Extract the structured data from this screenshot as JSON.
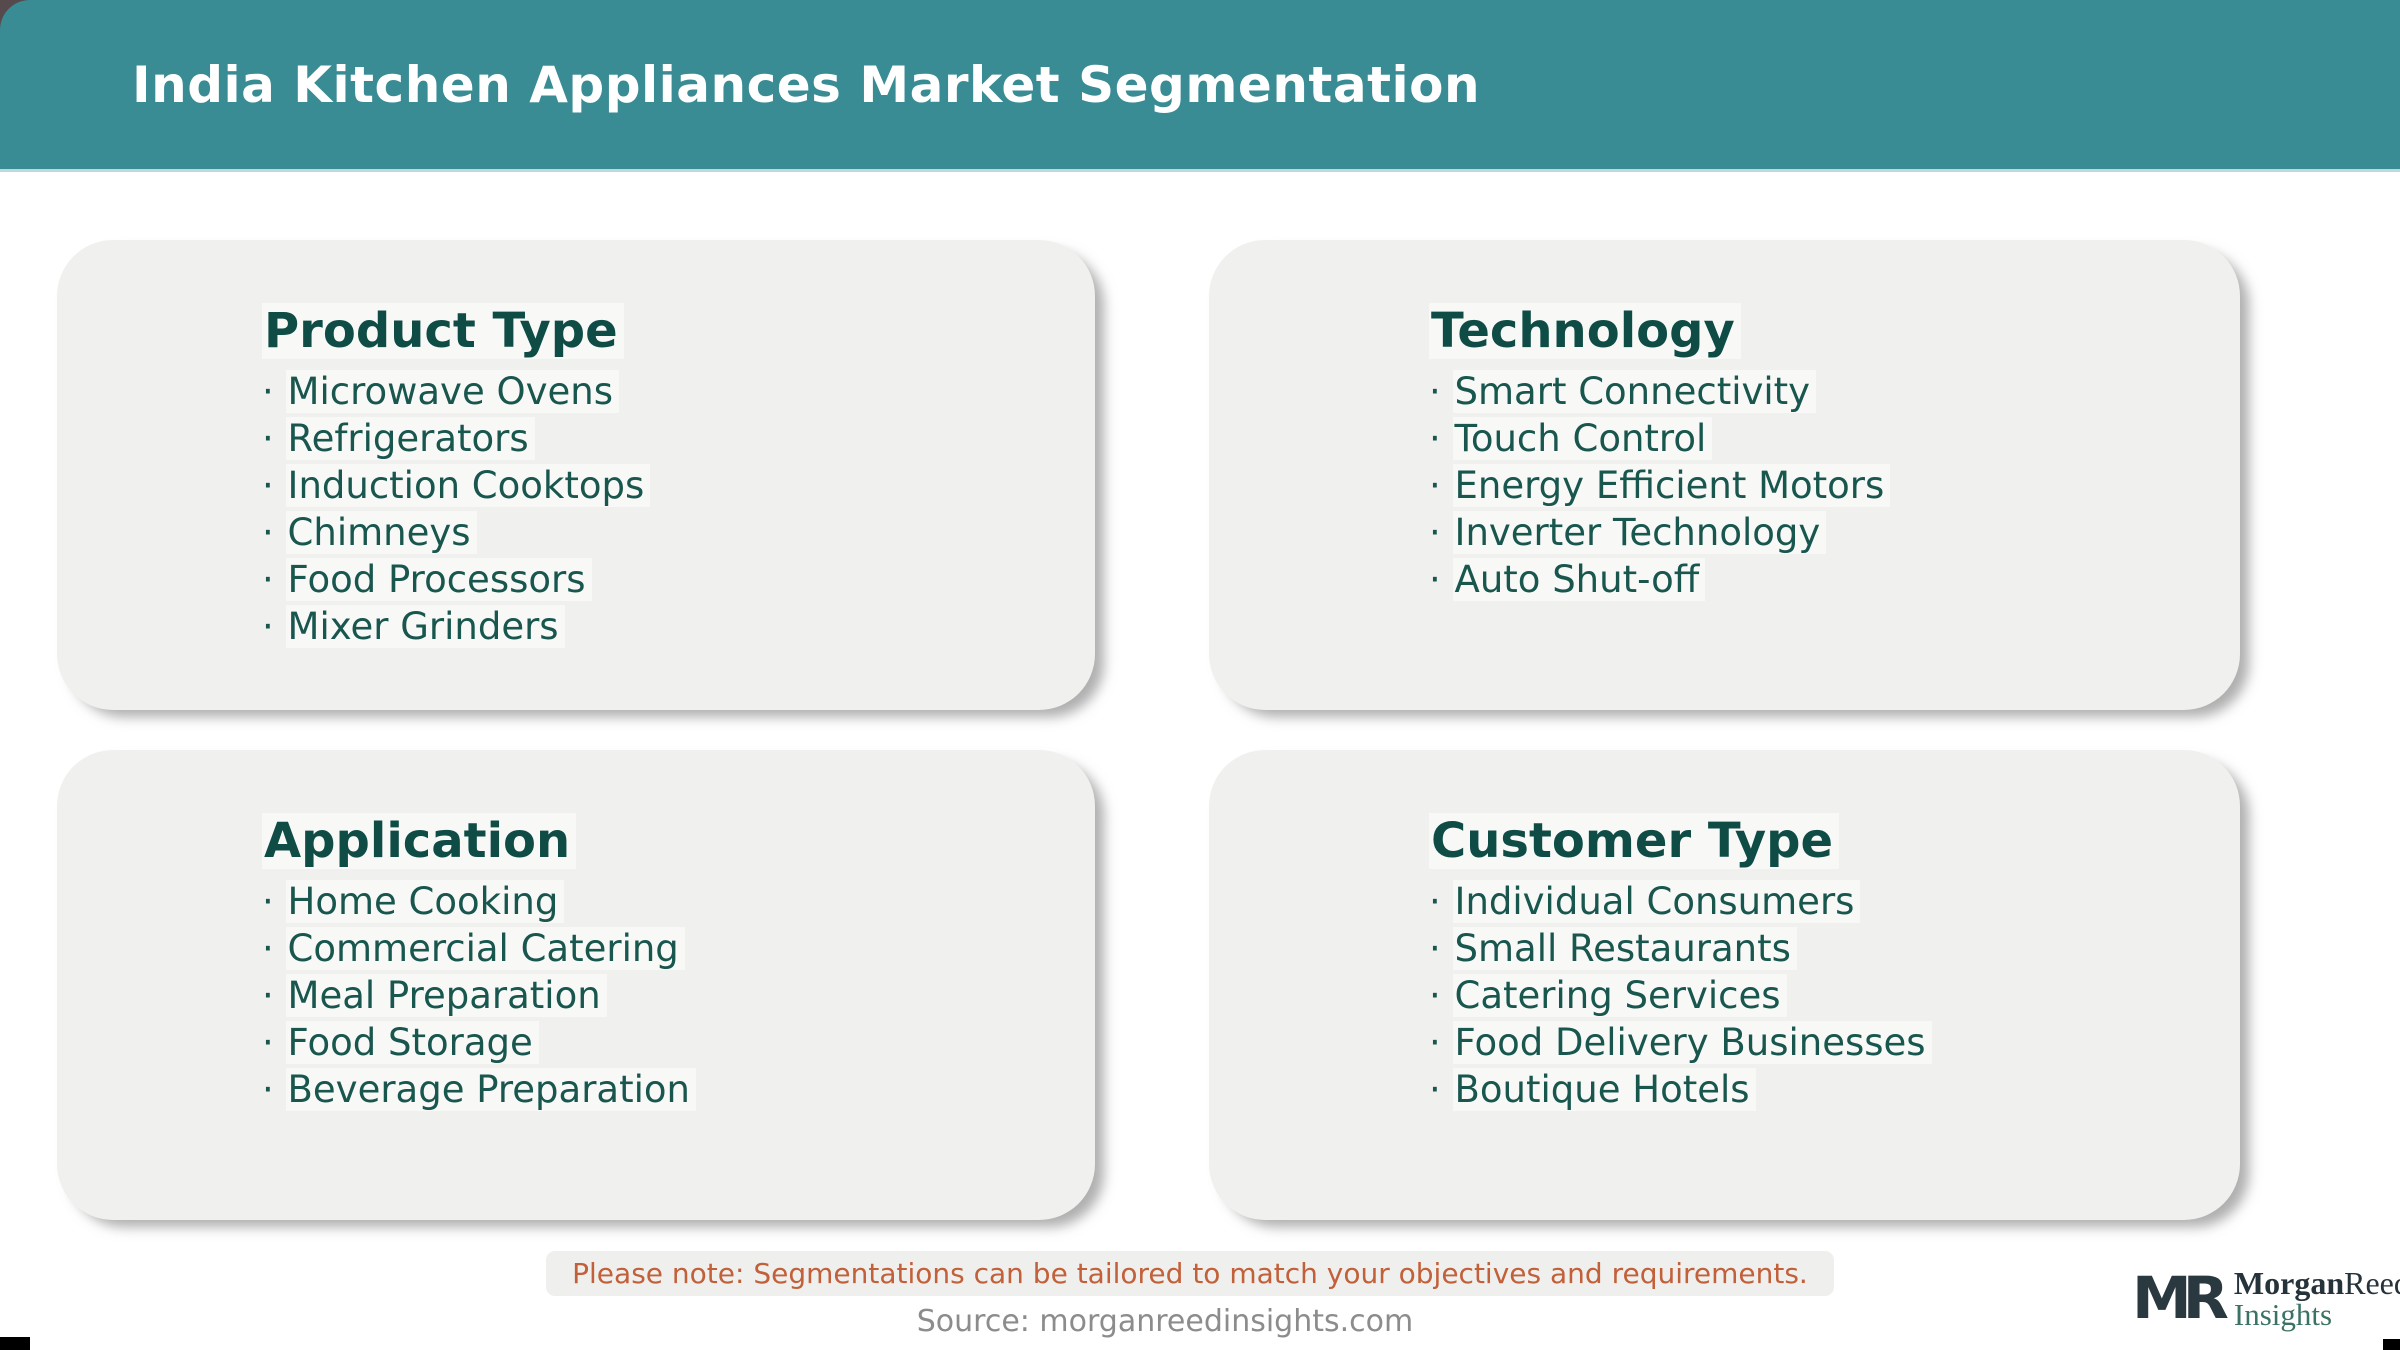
{
  "header": {
    "title": "India Kitchen Appliances Market Segmentation",
    "bg_color": "#398b94",
    "text_color": "#ffffff"
  },
  "cards": [
    {
      "title": "Product Type",
      "items": [
        "Microwave Ovens",
        "Refrigerators",
        "Induction Cooktops",
        "Chimneys",
        "Food Processors",
        "Mixer Grinders"
      ]
    },
    {
      "title": "Technology",
      "items": [
        "Smart Connectivity",
        "Touch Control",
        "Energy Efficient Motors",
        "Inverter Technology",
        "Auto Shut-off"
      ]
    },
    {
      "title": "Application",
      "items": [
        "Home Cooking",
        "Commercial Catering",
        "Meal Preparation",
        "Food Storage",
        "Beverage Preparation"
      ]
    },
    {
      "title": "Customer Type",
      "items": [
        "Individual Consumers",
        "Small Restaurants",
        "Catering Services",
        "Food Delivery Businesses",
        "Boutique Hotels"
      ]
    }
  ],
  "footer": {
    "note": "Please note: Segmentations can be tailored to match your objectives and requirements.",
    "note_color": "#c2603a",
    "source": "Source: morganreedinsights.com"
  },
  "logo": {
    "monogram": "MR",
    "name_bold": "Morgan",
    "name_regular": "Reed",
    "tagline": "Insights"
  },
  "colors": {
    "header_teal": "#398b94",
    "card_bg": "#f0f0ee",
    "card_title": "#0e4c45",
    "card_item": "#18564e",
    "note_orange": "#c2603a",
    "source_gray": "#8c8c8c",
    "logo_dark": "#26333b",
    "logo_green": "#3a7264"
  }
}
